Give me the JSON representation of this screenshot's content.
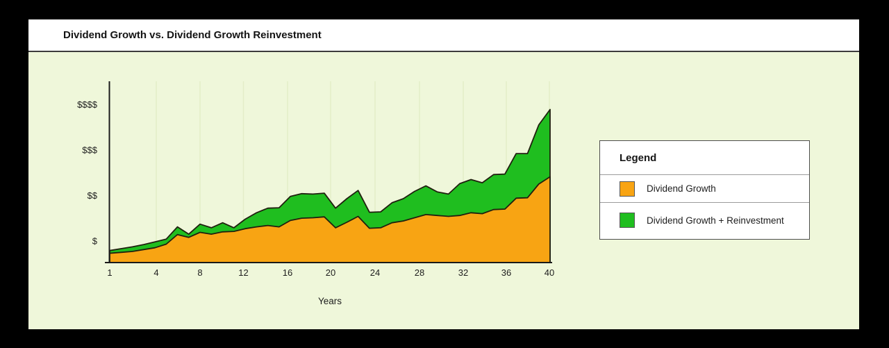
{
  "page": {
    "background": "#000000"
  },
  "header": {
    "title": "Dividend Growth vs. Dividend Growth Reinvestment"
  },
  "legend": {
    "title": "Legend",
    "items": [
      {
        "label": "Dividend Growth",
        "color": "#F8A413"
      },
      {
        "label": "Dividend Growth + Reinvestment",
        "color": "#1FBE1F"
      }
    ]
  },
  "axes": {
    "x_label": "Years",
    "x_tick_labels": [
      "1",
      "4",
      "8",
      "12",
      "16",
      "20",
      "24",
      "28",
      "32",
      "36",
      "40"
    ],
    "y_tick_labels": [
      "$",
      "$$",
      "$$$",
      "$$$$"
    ]
  },
  "colors": {
    "canvas": "#EFF7DA",
    "grid": "#E3EDC8",
    "axis": "#1A1A1A",
    "text": "#1D1D1D",
    "area_outline": "#20200F",
    "card": "#FFFFFF"
  },
  "chart_data": {
    "type": "area",
    "title": "Dividend Growth vs. Dividend Growth Reinvestment",
    "xlabel": "Years",
    "ylabel": "",
    "x": [
      1,
      2,
      3,
      4,
      5,
      6,
      7,
      8,
      9,
      10,
      11,
      12,
      13,
      14,
      15,
      16,
      17,
      18,
      19,
      20,
      21,
      22,
      23,
      24,
      25,
      26,
      27,
      28,
      29,
      30,
      31,
      32,
      33,
      34,
      35,
      36,
      37,
      38,
      39,
      40
    ],
    "x_tick_labels": [
      "1",
      "4",
      "8",
      "12",
      "16",
      "20",
      "24",
      "28",
      "32",
      "36",
      "40"
    ],
    "y_tick_labels": [
      "$",
      "$$",
      "$$$",
      "$$$$"
    ],
    "y_tick_values": [
      1,
      2,
      3,
      4
    ],
    "ylim": [
      0.53,
      4.51
    ],
    "value_units": "dollar-units estimated from pixels: $=1, $$=2, $$$=3, $$$$=4",
    "grid": "vertical gridlines at labeled year ticks only",
    "legend_position": "right of plot",
    "draw_order_note": "reinvestment (green, larger) area drawn behind; dividend growth (orange) area drawn in front; both outlined dark",
    "series": [
      {
        "name": "Dividend Growth",
        "color": "#F8A413",
        "values": [
          0.73,
          0.75,
          0.77,
          0.81,
          0.85,
          0.93,
          1.14,
          1.08,
          1.19,
          1.15,
          1.2,
          1.21,
          1.27,
          1.31,
          1.34,
          1.31,
          1.45,
          1.5,
          1.51,
          1.53,
          1.29,
          1.41,
          1.54,
          1.28,
          1.29,
          1.4,
          1.44,
          1.51,
          1.58,
          1.56,
          1.54,
          1.56,
          1.62,
          1.6,
          1.69,
          1.7,
          1.94,
          1.95,
          2.25,
          2.41
        ]
      },
      {
        "name": "Dividend Growth + Reinvestment",
        "color": "#1FBE1F",
        "values": [
          0.79,
          0.83,
          0.87,
          0.92,
          0.98,
          1.04,
          1.31,
          1.15,
          1.37,
          1.29,
          1.4,
          1.29,
          1.48,
          1.62,
          1.72,
          1.73,
          1.98,
          2.04,
          2.03,
          2.05,
          1.72,
          1.93,
          2.11,
          1.63,
          1.64,
          1.84,
          1.93,
          2.09,
          2.21,
          2.08,
          2.03,
          2.26,
          2.35,
          2.28,
          2.46,
          2.47,
          2.92,
          2.92,
          3.55,
          3.89
        ]
      }
    ]
  }
}
